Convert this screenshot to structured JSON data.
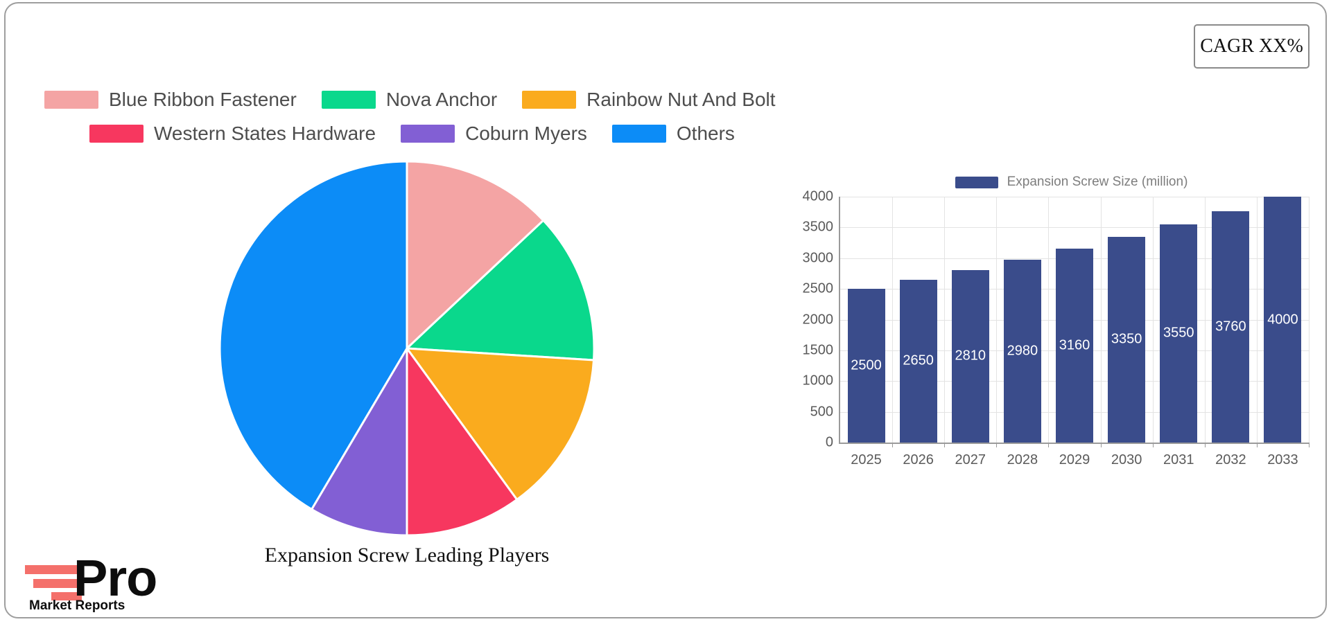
{
  "cagr_box": {
    "label": "CAGR XX%"
  },
  "logo": {
    "title": "Pro",
    "subtitle": "Market Reports",
    "bar_color": "#F4706B"
  },
  "colors": {
    "bar_navy": "#3A4C8B",
    "grid_line": "#e3e3e3",
    "axis_line": "#9a9a9a"
  },
  "chart_data": [
    {
      "type": "pie",
      "title": "Expansion Screw Leading Players",
      "start_angle": "top, clockwise",
      "legend_position": "top, two rows",
      "legend_rows": [
        [
          0,
          1,
          2
        ],
        [
          3,
          4,
          5
        ]
      ],
      "series": [
        {
          "name": "Blue Ribbon Fastener",
          "value": 13,
          "color": "#F4A4A4"
        },
        {
          "name": "Nova Anchor",
          "value": 13,
          "color": "#0AD88C"
        },
        {
          "name": "Rainbow Nut And Bolt",
          "value": 14,
          "color": "#FAAB1E"
        },
        {
          "name": "Western States Hardware",
          "value": 10,
          "color": "#F7375F"
        },
        {
          "name": "Coburn Myers",
          "value": 8.5,
          "color": "#825FD4"
        },
        {
          "name": "Others",
          "value": 41.5,
          "color": "#0C8CF7"
        }
      ]
    },
    {
      "type": "bar",
      "legend": "Expansion Screw Size (million)",
      "categories": [
        "2025",
        "2026",
        "2027",
        "2028",
        "2029",
        "2030",
        "2031",
        "2032",
        "2033"
      ],
      "values": [
        2500,
        2650,
        2810,
        2980,
        3160,
        3350,
        3550,
        3760,
        4000
      ],
      "value_labels": [
        "2500",
        "2650",
        "2810",
        "2980",
        "3160",
        "3350",
        "3550",
        "3760",
        "4000"
      ],
      "bar_color": "#3A4C8B",
      "ylim": [
        0,
        4000
      ],
      "yticks": [
        "0",
        "500",
        "1000",
        "1500",
        "2000",
        "2500",
        "3000",
        "3500",
        "4000"
      ],
      "ytick_step": 500,
      "grid": true,
      "legend_position": "top center"
    }
  ]
}
